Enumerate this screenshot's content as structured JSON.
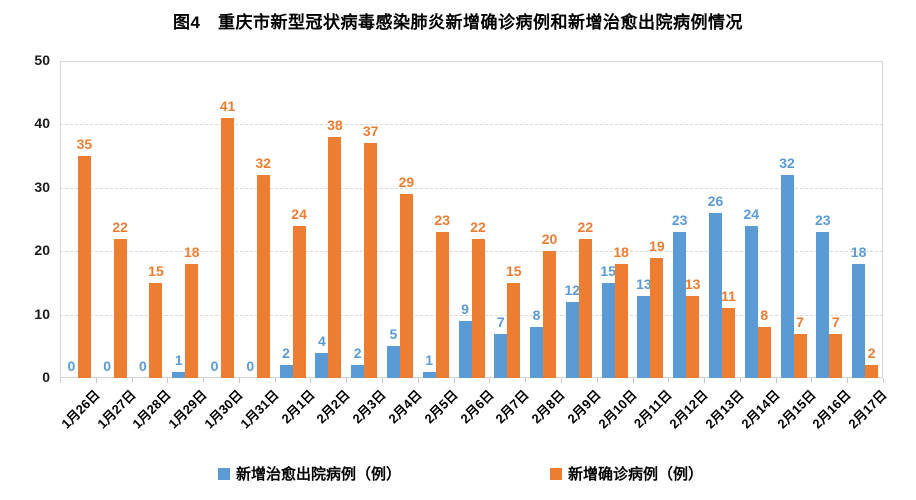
{
  "chart_data": {
    "type": "bar",
    "title": "图4　重庆市新型冠状病毒感染肺炎新增确诊病例和新增治愈出院病例情况",
    "categories": [
      "1月26日",
      "1月27日",
      "1月28日",
      "1月29日",
      "1月30日",
      "1月31日",
      "2月1日",
      "2月2日",
      "2月3日",
      "2月4日",
      "2月5日",
      "2月6日",
      "2月7日",
      "2月8日",
      "2月9日",
      "2月10日",
      "2月11日",
      "2月12日",
      "2月13日",
      "2月14日",
      "2月15日",
      "2月16日",
      "2月17日"
    ],
    "series": [
      {
        "name": "新增治愈出院病例（例）",
        "color": "#5B9BD5",
        "values": [
          0,
          0,
          0,
          1,
          0,
          0,
          2,
          4,
          2,
          5,
          1,
          9,
          7,
          8,
          12,
          15,
          13,
          23,
          26,
          24,
          32,
          23,
          18
        ]
      },
      {
        "name": "新增确诊病例（例）",
        "color": "#ED7D31",
        "values": [
          35,
          22,
          15,
          18,
          41,
          32,
          24,
          38,
          37,
          29,
          23,
          22,
          15,
          20,
          22,
          18,
          19,
          13,
          11,
          8,
          7,
          7,
          2
        ]
      }
    ],
    "ylim": [
      0,
      50
    ],
    "yticks": [
      0,
      10,
      20,
      30,
      40,
      50
    ],
    "grid": "horizontal-dashed",
    "grid_color": "#D9D9D9",
    "axis_color": "#C9C9C9",
    "legend_position": "bottom",
    "data_labels": true
  }
}
